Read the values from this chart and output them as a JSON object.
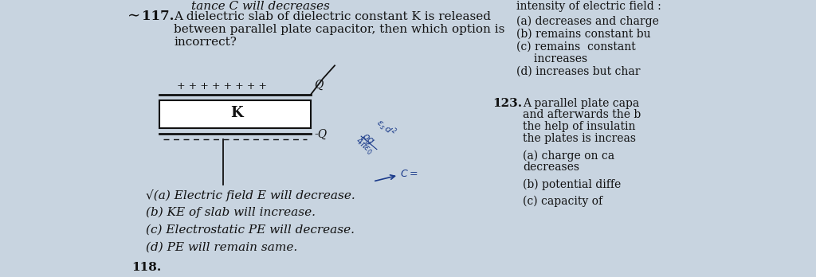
{
  "bg_color": "#c8d4e0",
  "title_num": "117.",
  "title_text": "A dielectric slab of dielectric constant K is released\nbetween parallel plate capacitor, then which option is\nincorrect?",
  "options": [
    "√(a) Electric field E will decrease.",
    "(b) KE of slab will increase.",
    "(c) Electrostatic PE will decrease.",
    "(d) PE will remain same."
  ],
  "right_header": "intensity of electric field :",
  "right_options": [
    "(a) decreases and charge",
    "(b) remains constant bu",
    "(c) remains  constant",
    "     increases",
    "(d) increases but char"
  ],
  "q123_header": "123.",
  "q123_text": "A parallel plate capa\nand afterwards the b\nthe help of insulatin\nthe plates is increas",
  "q123_options": [
    "(a) charge on ca\n     decreases",
    "(b) potential diffe",
    "(c) capacity of"
  ],
  "top_text": "tance C will decreases",
  "font_size_main": 11,
  "font_size_right": 10,
  "text_color": "#111111",
  "blue_color": "#1a3a8a"
}
